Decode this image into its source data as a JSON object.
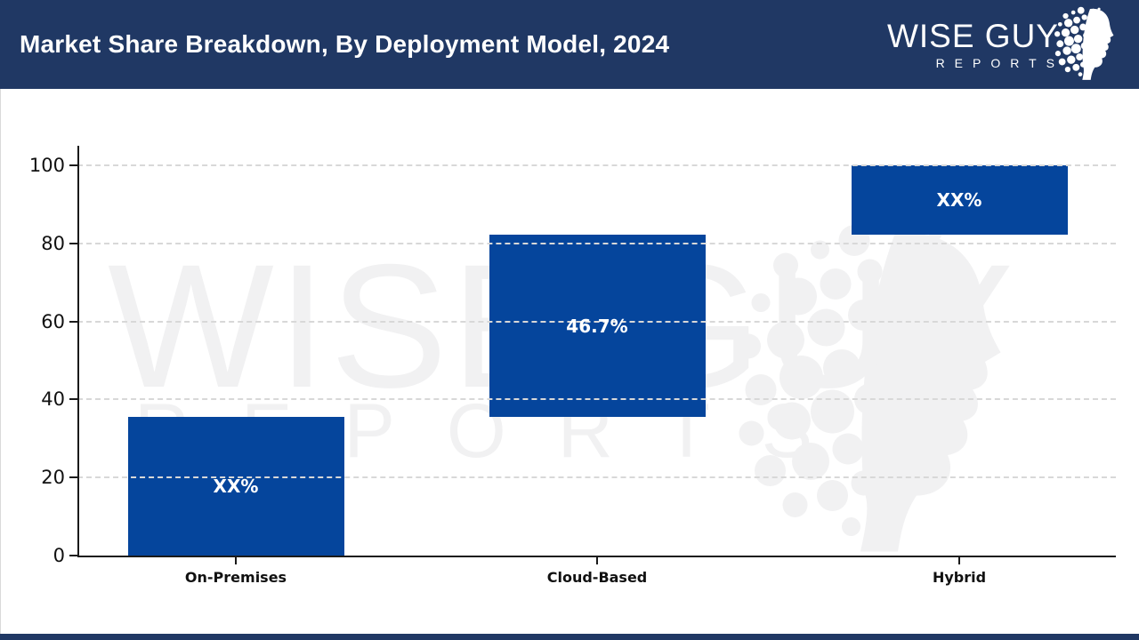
{
  "header": {
    "title": "Market Share Breakdown, By Deployment Model, 2024",
    "bg_color": "#203864",
    "logo": {
      "line1": "WISE GUY",
      "line2": "REPORTS"
    }
  },
  "watermark": {
    "line1": "WISE GUY",
    "line2": "REPORTS"
  },
  "chart_data": {
    "type": "bar",
    "variant": "floating-waterfall",
    "title": "Market Share Breakdown, By Deployment Model, 2024",
    "categories": [
      "On-Premises",
      "Cloud-Based",
      "Hybrid"
    ],
    "bars": [
      {
        "category": "On-Premises",
        "start": 0,
        "end": 35.5,
        "value_label": "XX%"
      },
      {
        "category": "Cloud-Based",
        "start": 35.5,
        "end": 82.2,
        "value_label": "46.7%"
      },
      {
        "category": "Hybrid",
        "start": 82.2,
        "end": 100,
        "value_label": "XX%"
      }
    ],
    "xlabel": "",
    "ylabel": "",
    "ylim": [
      0,
      100
    ],
    "yticks": [
      0,
      20,
      40,
      60,
      80,
      100
    ],
    "grid": "horizontal-dashed",
    "grid_color": "#d8d8d8",
    "bar_color": "#05459c",
    "label_color": "#ffffff",
    "legend": "none"
  },
  "footer": {
    "bg_color": "#203864"
  }
}
